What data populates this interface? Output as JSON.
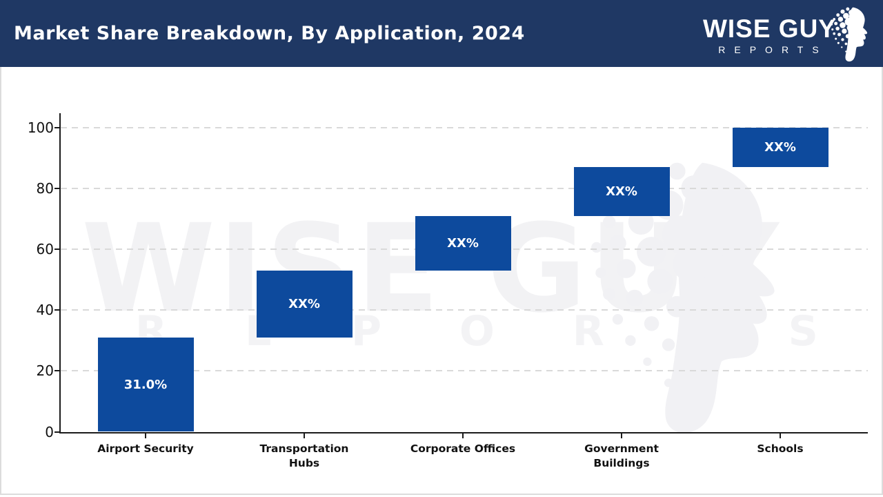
{
  "header": {
    "title": "Market Share Breakdown, By Application, 2024",
    "bg_color": "#1f3864",
    "logo": {
      "name": "WISE GUY",
      "tagline": "REPORTS"
    }
  },
  "watermark": {
    "line1": "WISE GUY",
    "line2": "R E P O R T S"
  },
  "chart_data": {
    "type": "bar",
    "subtype": "waterfall",
    "title": "Market Share Breakdown, By Application, 2024",
    "categories": [
      "Airport Security",
      "Transportation\nHubs",
      "Corporate Offices",
      "Government\nBuildings",
      "Schools"
    ],
    "segments": [
      {
        "category": "Airport Security",
        "start": 0,
        "end": 31,
        "value": 31,
        "display": "31.0%"
      },
      {
        "category": "Transportation Hubs",
        "start": 31,
        "end": 53,
        "value": 22,
        "display": "XX%"
      },
      {
        "category": "Corporate Offices",
        "start": 53,
        "end": 71,
        "value": 18,
        "display": "XX%"
      },
      {
        "category": "Government Buildings",
        "start": 71,
        "end": 87,
        "value": 16,
        "display": "XX%"
      },
      {
        "category": "Schools",
        "start": 87,
        "end": 100,
        "value": 13,
        "display": "XX%"
      }
    ],
    "yticks": [
      "0",
      "20",
      "40",
      "60",
      "80",
      "100"
    ],
    "ylim": [
      0,
      105
    ],
    "grid": "horizontal-dashed",
    "legend": "none",
    "bar_color": "#0d4a9d",
    "bar_label_color": "#ffffff",
    "axis_color": "#1a1a1a",
    "grid_color": "#d9d9d9"
  }
}
